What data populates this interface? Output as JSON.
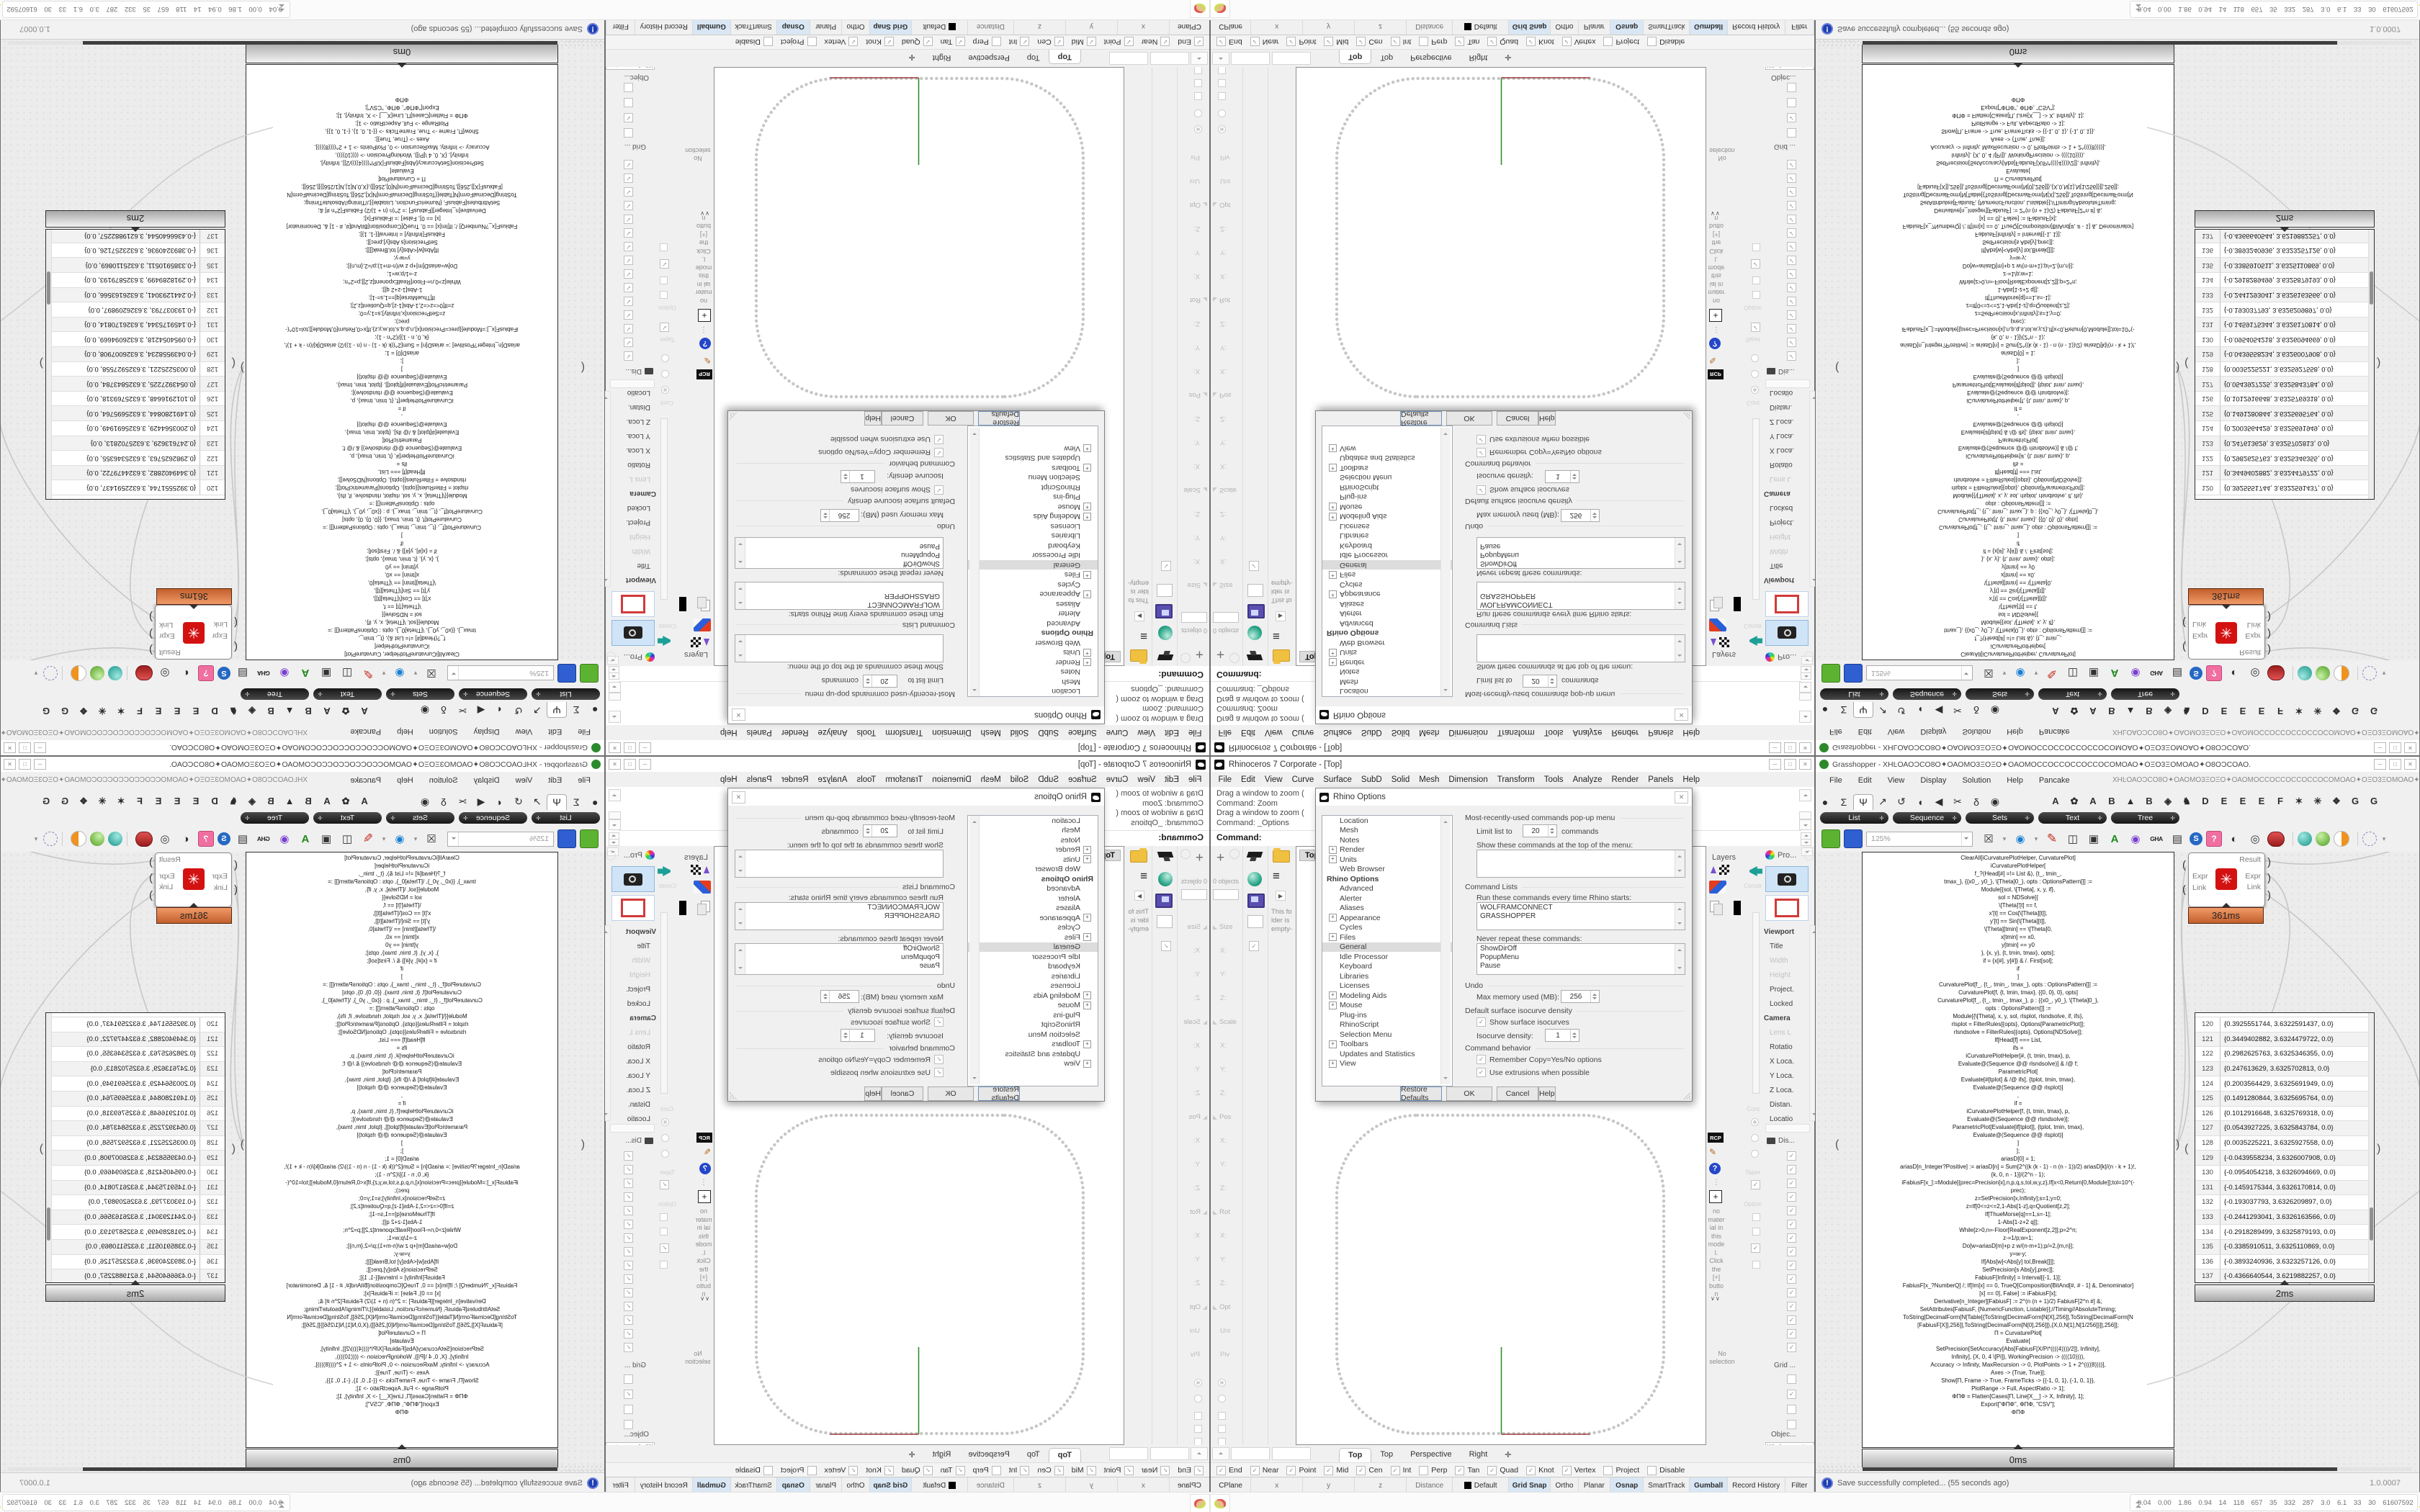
{
  "window_controls": {
    "minimize": "─",
    "maximize": "□",
    "close": "✕"
  },
  "rhino": {
    "title": "Rhinoceros 7 Corporate - [Top]",
    "menu": [
      "File",
      "Edit",
      "View",
      "Curve",
      "Surface",
      "SubD",
      "Solid",
      "Mesh",
      "Dimension",
      "Transform",
      "Tools",
      "Analyze",
      "Render",
      "Panels",
      "Help"
    ],
    "command_history": [
      "Drag a window to zoom (",
      "Command: Zoom",
      "Drag a window to zoom (",
      "Command: _Options"
    ],
    "command_prompt": "Command:",
    "viewport_label": "Top",
    "viewport_tabs": [
      {
        "label": "Top",
        "active": true
      },
      {
        "label": "Top"
      },
      {
        "label": "Perspective"
      },
      {
        "label": "Right"
      },
      {
        "label": "✛"
      }
    ],
    "left_dock": {
      "objects_count": "0 objects",
      "empty_note": "This folder is empty-",
      "rows": [
        {
          "label": "Size",
          "sec": true
        },
        {
          "label": "X:"
        },
        {
          "label": "Y:"
        },
        {
          "label": "Z:"
        },
        {
          "label": "Scale",
          "sec": true
        },
        {
          "label": "X:"
        },
        {
          "label": "Y:"
        },
        {
          "label": "Z:"
        },
        {
          "label": "Pos",
          "sec": true
        },
        {
          "label": "X:"
        },
        {
          "label": "Y:"
        },
        {
          "label": "Z:"
        },
        {
          "label": "Rot",
          "sec": true
        },
        {
          "label": "X:"
        },
        {
          "label": "Y:"
        },
        {
          "label": "Z:"
        },
        {
          "label": "Opt",
          "sec": true
        },
        {
          "label": "Uni"
        },
        {
          "label": "Piv"
        }
      ]
    },
    "dialog": {
      "title": "Rhino Options",
      "tree": [
        {
          "label": "Location"
        },
        {
          "label": "Mesh"
        },
        {
          "label": "Notes"
        },
        {
          "label": "Render",
          "plus": true
        },
        {
          "label": "Units",
          "plus": true
        },
        {
          "label": "Web Browser"
        },
        {
          "label": "Rhino Options",
          "header": true
        },
        {
          "label": "Advanced"
        },
        {
          "label": "Alerter"
        },
        {
          "label": "Aliases"
        },
        {
          "label": "Appearance",
          "plus": true
        },
        {
          "label": "Cycles"
        },
        {
          "label": "Files",
          "plus": true
        },
        {
          "label": "General",
          "selected": true
        },
        {
          "label": "Idle Processor"
        },
        {
          "label": "Keyboard"
        },
        {
          "label": "Libraries"
        },
        {
          "label": "Licenses"
        },
        {
          "label": "Modeling Aids",
          "plus": true
        },
        {
          "label": "Mouse",
          "plus": true
        },
        {
          "label": "Plug-ins"
        },
        {
          "label": "RhinoScript"
        },
        {
          "label": "Selection Menu"
        },
        {
          "label": "Toolbars",
          "plus": true
        },
        {
          "label": "Updates and Statistics"
        },
        {
          "label": "View",
          "plus": true
        }
      ],
      "mru_group": "Most-recently-used commands pop-up menu",
      "limit_prefix": "Limit list to",
      "limit_value": "20",
      "limit_suffix": "commands",
      "show_top_label": "Show these commands at the top of the menu:",
      "cmd_lists_group": "Command Lists",
      "run_label": "Run these commands every time Rhino starts:",
      "run_items": [
        "WOLFRAMCONNECT",
        "GRASSHOPPER"
      ],
      "never_label": "Never repeat these commands:",
      "never_items": [
        "ShowDirOff",
        "PopupMenu",
        "Pause"
      ],
      "undo_group": "Undo",
      "max_mem_label": "Max memory used (MB):",
      "max_mem_value": "256",
      "isocurve_group": "Default surface isocurve density",
      "behavior_group": "Command behavior",
      "density_label": "Isocurve density:",
      "density_value": "1",
      "checks": {
        "show_isocurves": "Show surface isocurves",
        "remember_copy": "Remember Copy=Yes/No options",
        "use_extrusions": "Use extrusions when possible"
      },
      "buttons": [
        "Restore Defaults",
        "OK",
        "Cancel",
        "Help"
      ]
    },
    "right_dock": {
      "layers_title": "Layers",
      "props_title": "Pro...",
      "display_title": "Dis...",
      "rcp_label": "RCP",
      "materials_note": "no material in this model. Click the [+] button",
      "vv_label": "∨∨",
      "no_selection": "No selection",
      "constraint_label": "Constr",
      "cont_label": "Cont",
      "taper_label": "Taper",
      "option_label": "Option",
      "fields": [
        {
          "label": "Viewport",
          "bold": true
        },
        {
          "label": "Title"
        },
        {
          "label": "Width",
          "dim": true
        },
        {
          "label": "Height",
          "dim": true
        },
        {
          "label": "Project."
        },
        {
          "label": "Locked"
        },
        {
          "label": "Camera",
          "bold": true
        },
        {
          "label": "Lens L",
          "dim": true
        },
        {
          "label": "Rotatio"
        },
        {
          "label": "X Loca."
        },
        {
          "label": "Y Loca."
        },
        {
          "label": "Z Loca."
        },
        {
          "label": "Distan."
        },
        {
          "label": "Locatio"
        }
      ],
      "display_checks": [
        {
          "on": true
        },
        {
          "on": true
        },
        {
          "on": true
        },
        {
          "on": true
        },
        {
          "on": true
        },
        {
          "on": true
        },
        {
          "on": true
        },
        {
          "on": true
        },
        {
          "on": true
        },
        {
          "on": true
        },
        {
          "on": true
        },
        {
          "on": true
        },
        {
          "on": true
        },
        {
          "on": true
        },
        {
          "on": true
        }
      ],
      "grid_label": "Grid ...",
      "grid_boxes": [
        {
          "on": false
        },
        {
          "on": true
        },
        {
          "on": false
        },
        {
          "on": false
        }
      ],
      "object_label": "Objec...",
      "display_mode_value": "Wireframe sett"
    },
    "osnap": [
      {
        "label": "End",
        "on": true
      },
      {
        "label": "Near",
        "on": true
      },
      {
        "label": "Point",
        "on": true
      },
      {
        "label": "Mid",
        "on": true
      },
      {
        "label": "Cen",
        "on": true
      },
      {
        "label": "Int",
        "on": true
      },
      {
        "label": "Perp"
      },
      {
        "label": "Tan",
        "on": true
      },
      {
        "label": "Quad",
        "on": true
      },
      {
        "label": "Knot",
        "on": true
      },
      {
        "label": "Vertex",
        "on": true
      },
      {
        "label": "Project"
      },
      {
        "label": "Disable"
      }
    ],
    "status": [
      {
        "label": "CPlane",
        "w": 56
      },
      {
        "label": "x",
        "dim": true,
        "w": 72
      },
      {
        "label": "y",
        "dim": true,
        "w": 72
      },
      {
        "label": "z",
        "dim": true,
        "w": 72
      },
      {
        "label": "Distance",
        "dim": true,
        "w": 64
      },
      {
        "label": "Default",
        "swatch": true,
        "w": 78
      },
      {
        "label": "Grid Snap",
        "active": true,
        "w": 58
      },
      {
        "label": "Ortho",
        "w": 38
      },
      {
        "label": "Planar",
        "w": 44
      },
      {
        "label": "Osnap",
        "active": true,
        "w": 46
      },
      {
        "label": "SmartTrack",
        "w": 64
      },
      {
        "label": "Gumball",
        "active": true,
        "w": 52
      },
      {
        "label": "Record History",
        "w": 80
      },
      {
        "label": "Filter",
        "w": 40
      }
    ]
  },
  "gh": {
    "title": "Grasshopper - XHĿΟΑΟϽϹΟ8Ο✦ΟΑΟΜΟ3ΞΟΞΟ✦ΟΑΟΜΟϹϹΟϹϹΟϹϹΟϹϹΟϹΟΜΟΑΟ✦ΟΞΟ3ΞΟΜΟΑΟ✦Ο8ΟϽϹΟΑΟ.",
    "doc_name": "XHĿΟΑΟϽϹΟ8Ο✦ΟΑΟΜΟ3ΞΟΞΟ✦ΟΑΟΜΟϹϹΟϹϹΟϹϹΟϹϹΟϹΟΜΟΑΟ✦ΟΞΟ3ΞΟΜΟΑΟ✦Ο8ΟϽϹΟΑΟ.",
    "menu": [
      "File",
      "Edit",
      "View",
      "Display",
      "Solution",
      "Help",
      "Pancake"
    ],
    "category_tabs": [
      {
        "name": "params",
        "glyph": "●"
      },
      {
        "name": "maths",
        "glyph": "Σ"
      },
      {
        "name": "grasshopper",
        "glyph": "Ψ",
        "active": true
      },
      {
        "name": "vector",
        "glyph": "↗"
      },
      {
        "name": "curve",
        "glyph": "↺"
      },
      {
        "name": "surface",
        "glyph": "◖"
      },
      {
        "name": "mesh",
        "glyph": "◀"
      },
      {
        "name": "intersect",
        "glyph": "✂"
      },
      {
        "name": "transform",
        "glyph": "δ"
      },
      {
        "name": "display",
        "glyph": "◉"
      }
    ],
    "plugin_tabs": [
      "A",
      "✿",
      "A",
      "B",
      "▲",
      "B",
      "◈",
      "♞",
      "D",
      "E",
      "E",
      "E",
      "F",
      "✶",
      "✳",
      "❖",
      "G",
      "G"
    ],
    "subcategory_tabs": [
      "List",
      "Sequence",
      "Sets",
      "Text",
      "Tree"
    ],
    "zoom_level": "125%",
    "toolbar_icons": [
      {
        "name": "zoom-extents",
        "glyph": "☒"
      },
      {
        "name": "dropdown",
        "glyph": "▾"
      },
      {
        "name": "preview",
        "glyph": "◉"
      },
      {
        "name": "dropdown",
        "glyph": "▾"
      },
      {
        "name": "sketch",
        "glyph": "✎"
      },
      {
        "name": "widget-a",
        "glyph": "◫"
      },
      {
        "name": "widget-b",
        "glyph": "▣"
      },
      {
        "name": "profiler",
        "glyph": "A"
      },
      {
        "name": "disc",
        "glyph": "◉"
      },
      {
        "name": "gha",
        "glyph": "GHA"
      },
      {
        "name": "news",
        "glyph": "▤"
      },
      {
        "name": "find",
        "glyph": "S"
      },
      {
        "name": "mystery",
        "glyph": "?"
      },
      {
        "name": "cap",
        "glyph": "◐"
      },
      {
        "name": "wires",
        "glyph": "◎"
      },
      {
        "name": "cylinder",
        "glyph": ""
      },
      {
        "name": "sep",
        "glyph": ""
      },
      {
        "name": "pin-teal",
        "glyph": ""
      },
      {
        "name": "pin-green",
        "glyph": ""
      },
      {
        "name": "ball",
        "glyph": ""
      },
      {
        "name": "sep",
        "glyph": ""
      },
      {
        "name": "lasso",
        "glyph": ""
      },
      {
        "name": "tiny-drop",
        "glyph": "▾"
      }
    ],
    "component": {
      "icon": "✳",
      "inputs": [
        {
          "label": "Expr"
        },
        {
          "label": "Link"
        }
      ],
      "outputs": [
        {
          "label": "Result"
        },
        {
          "label": "Expr"
        },
        {
          "label": "Link"
        }
      ],
      "time": "361ms"
    },
    "grips": {
      "open": "(",
      "close": ")"
    },
    "code_time": "0ms",
    "data_time": "2ms",
    "code_lines": [
      "ClearAll[iCurvaturePlotHelper, CurvaturePlot]",
      "iCurvaturePlotHelper[",
      "f_?(Head[#] =!= List &), {t_, tmin_,",
      "tmax_}, {{x0_, y0_}, \\[Theta]0_}, opts : OptionsPattern[]] :=",
      "Module[{sol, \\[Theta], x, y, if},",
      "sol = NDSolve[{",
      "\\[Theta]'[t] == f,",
      "x'[t] == Cos[\\[Theta][t]],",
      "y'[t] == Sin[\\[Theta][t]],",
      "\\[Theta][tmin] == \\[Theta]0,",
      "x[tmin] == x0,",
      "y[tmin] == y0",
      "}, {x, y}, {t, tmin, tmax}, opts];",
      "if = {x[#], y[#]} & /. First[sol];",
      "if",
      "]",
      "",
      "CurvaturePlot[f_, {t_, tmin_, tmax_}, opts : OptionsPattern[]] :=",
      "CurvaturePlot[f, {t, tmin, tmax}, {{0, 0}, 0}, opts]",
      "CurvaturePlot[f_, {t_, tmin_, tmax_}, p : {{x0_, y0_}, \\[Theta]0_},",
      "opts : OptionsPattern[]] :=",
      "Module[{\\[Theta], x, y, sol, rlsplot, rlsndsolve, if, ifs},",
      "rlsplot = FilterRules[{opts}, Options[ParametricPlot]];",
      "rlsndsolve = FilterRules[{opts}, Options[NDSolve]];",
      "If[Head[f] === List,",
      "ifs =",
      "iCurvaturePlotHelper[#, {t, tmin, tmax}, p,",
      "Evaluate@(Sequence @@ rlsndsolve)] & /@ f;",
      "ParametricPlot[",
      "Evaluate[#[tplot] & /@ ifs], {tplot, tmin, tmax},",
      "Evaluate@(Sequence @@ rlsplot)]",
      ",",
      "if =",
      "iCurvaturePlotHelper[f, {t, tmin, tmax}, p,",
      "Evaluate@(Sequence @@ rlsndsolve)];",
      "ParametricPlot[Evaluate[if[tplot]], {tplot, tmin, tmax},",
      "Evaluate@(Sequence @@ rlsplot)]",
      "]",
      "];",
      "",
      "ariasD[0] = 1;",
      "ariasD[n_Integer?Positive] := ariasD[n] = Sum[2^((k (k - 1) - n (n - 1))/2) ariasD[k]/(n - k + 1)!,",
      "{k, 0, n - 1}]/(2^n - 1);",
      "iFabiusF[x_]:=Module[{prec=Precision[x],n,p,q,s,tol,w,y,z},If[x<0,Return[0,Module]];tol=10^(-",
      "prec);",
      "z=SetPrecision[x,Infinity];s=1;y=0;",
      "z=If[0<=z<=2,1-Abs[1-z],q=Quotient[z,2];",
      "If[ThueMorse[q]==1,s=-1];",
      "1-Abs[1-z+2 q]];",
      "While[z>0,n=-Floor[RealExponent[z,2]];p=2^n;",
      "z-=1/p;w=1;",
      "Do[w=ariasD[m]+p z w/(n-m+1);p/=2,{m,n}];",
      "y=w-y;",
      "If[Abs[w]<Abs[y] tol,Break[]]];",
      "SetPrecision[s Abs[y],prec]];",
      "FabiusF[Infinity] = Interval[{-1, 1}];",
      "FabiusF[x_?NumberQ] /; If[Im[x] == 0, TrueQ[Composition[BitAnd[#, # - 1] &, Denominator]",
      "[x] == 0], False] := iFabiusF[x];",
      "Derivative[n_Integer][FabiusF] := 2^(n (n + 1)/2) FabiusF[2^n #] &;",
      "SetAttributes[FabiusF, {NumericFunction, Listable}];//Timing//AbsoluteTiming;",
      "",
      "ToString[DecimalForm[N[Table[{ToString[DecimalForm[N[X],256]],ToString[DecimalForm[N",
      "[FabiusF[X]],256]],ToString[DecimalForm[N[0],256]]},{X,0,N[1],N[1/256]}]],256]];",
      "",
      "Π = CurvaturePlot[",
      "Evaluate[",
      "SetPrecision[SetAccuracy[Abs[FabiusF[X/Pi*((((4))))/2]], Infinity],",
      "Infinity], {X, 0, 4 \\[Pi]}, WorkingPrecision -> ((((10)))),",
      "Accuracy -> Infinity, MaxRecursion -> 0, PlotPoints -> 1 + 2^((((8))))],",
      "Axes -> {True, True}];",
      "Show[Π, Frame -> True, FrameTicks -> {{-1, 0, 1}, {-1, 0, 1}},",
      "PlotRange -> Full, AspectRatio -> 1];",
      "ΦΠΦ = Flatten[Cases[Π, Line[X__] -> X, Infinity], 1];",
      "Export[\"ΦΠΦ\", ΦΠΦ, \"CSV\"];",
      "ΦΠΦ"
    ],
    "data_rows": [
      {
        "i": "120",
        "v": "{0.3925551744, 3.6322591437, 0.0}"
      },
      {
        "i": "121",
        "v": "{0.3449402882, 3.6324479722, 0.0}",
        "alt": true
      },
      {
        "i": "122",
        "v": "{0.2982625763, 3.6325346355, 0.0}"
      },
      {
        "i": "123",
        "v": "{0.247613629, 3.6325702813, 0.0}",
        "alt": true
      },
      {
        "i": "124",
        "v": "{0.2003564429, 3.6325691949, 0.0}"
      },
      {
        "i": "125",
        "v": "{0.1491280844, 3.6325695764, 0.0}",
        "alt": true
      },
      {
        "i": "126",
        "v": "{0.1012916648, 3.6325769318, 0.0}"
      },
      {
        "i": "127",
        "v": "{0.0543927225, 3.6325843784, 0.0}",
        "alt": true
      },
      {
        "i": "128",
        "v": "{0.0035225221, 3.6325927558, 0.0}"
      },
      {
        "i": "129",
        "v": "{-0.0439558234, 3.6326007908, 0.0}",
        "alt": true
      },
      {
        "i": "130",
        "v": "{-0.0954054218, 3.6326094669, 0.0}"
      },
      {
        "i": "131",
        "v": "{-0.1459175344, 3.6326170814, 0.0}",
        "alt": true
      },
      {
        "i": "132",
        "v": "{-0.193037793, 3.6326209897, 0.0}"
      },
      {
        "i": "133",
        "v": "{-0.2441293041, 3.6326163566, 0.0}",
        "alt": true
      },
      {
        "i": "134",
        "v": "{-0.2918289499, 3.6325879193, 0.0}"
      },
      {
        "i": "135",
        "v": "{-0.3385910511, 3.6325110869, 0.0}",
        "alt": true
      },
      {
        "i": "136",
        "v": "{-0.3893240936, 3.6323257126, 0.0}"
      },
      {
        "i": "137",
        "v": "{-0.4366640544, 3.6219882257, 0.0}",
        "alt": true
      }
    ],
    "statusbar": {
      "message": "Save successfully completed... (55 seconds ago)",
      "version": "1.0.0007"
    }
  },
  "taskbar": {
    "icons": [
      {
        "name": "system-monitor",
        "glyph": ""
      },
      {
        "name": "firefox",
        "glyph": ""
      },
      {
        "name": "installer-64",
        "glyph": "64"
      },
      {
        "name": "rhinoceros",
        "glyph": ""
      },
      {
        "name": "red-app-a",
        "glyph": "◉"
      },
      {
        "name": "red-app-b",
        "glyph": "✳"
      },
      {
        "name": "notepad",
        "glyph": ""
      },
      {
        "name": "purple-app",
        "glyph": "☻"
      },
      {
        "name": "paint-palette",
        "glyph": ""
      }
    ],
    "perf_text": "0.04 0.00 1.86 0.94 14 118 657 35 332 287 3.0 6.1 33 30 61607592"
  },
  "colors": {
    "balloon_orange": "#c96530",
    "status_active": "#d9e7f5",
    "axis_green": "#2f8f2f",
    "axis_red": "#9c3a3a",
    "curve_dots": "#c6c6c6",
    "mathematica_red": "#d41111"
  }
}
